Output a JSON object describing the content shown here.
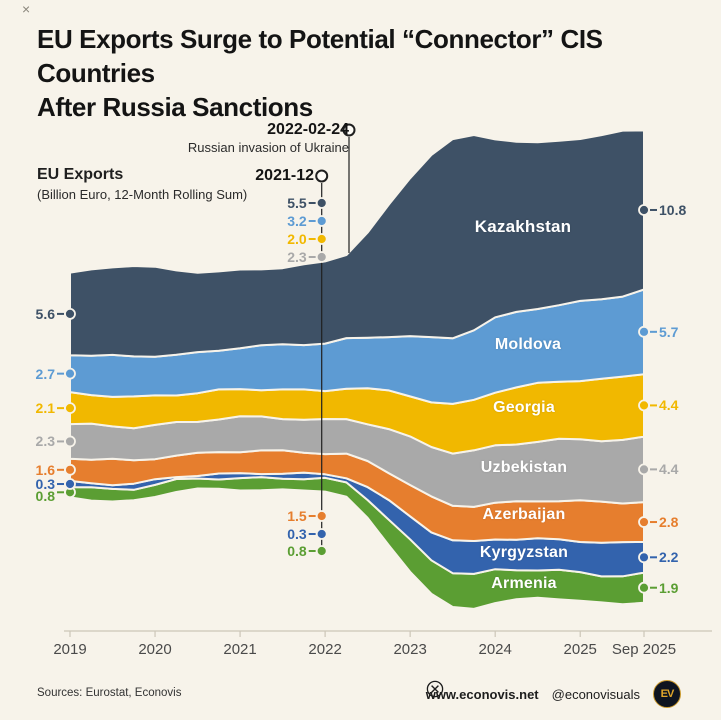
{
  "page": {
    "close_glyph": "×",
    "background": "#f7f3ea"
  },
  "header": {
    "title_line1": "EU Exports Surge to Potential “Connector” CIS Countries",
    "title_line2": "After Russia Sanctions"
  },
  "chart_data": {
    "type": "area",
    "variant": "stacked-streamgraph",
    "title": "EU Exports",
    "subtitle": "(Billion Euro, 12-Month Rolling Sum)",
    "unit": "Billion Euro, 12-month rolling sum",
    "x": [
      2019.0,
      2019.25,
      2019.5,
      2019.75,
      2020.0,
      2020.25,
      2020.5,
      2020.75,
      2021.0,
      2021.25,
      2021.5,
      2021.75,
      2022.0,
      2022.25,
      2022.5,
      2022.75,
      2023.0,
      2023.25,
      2023.5,
      2023.75,
      2024.0,
      2024.25,
      2024.5,
      2024.75,
      2025.0,
      2025.25,
      2025.5,
      2025.75
    ],
    "x_axis": {
      "ticks": [
        "2019",
        "2020",
        "2021",
        "2022",
        "2023",
        "2024",
        "2025",
        "Sep 2025"
      ],
      "tick_years": [
        2019,
        2020,
        2021,
        2022,
        2023,
        2024,
        2025,
        2025.75
      ]
    },
    "series": [
      {
        "name": "Armenia",
        "color": "#5b9e33",
        "start_label": "0.8",
        "mid_label": "0.8",
        "end_label": "1.9",
        "values": [
          0.8,
          0.8,
          0.82,
          0.8,
          0.78,
          0.75,
          0.76,
          0.8,
          0.8,
          0.8,
          0.8,
          0.8,
          0.8,
          0.95,
          1.4,
          1.8,
          2.1,
          2.3,
          2.4,
          2.3,
          2.2,
          2.1,
          2.0,
          1.95,
          1.9,
          1.88,
          1.9,
          1.9
        ]
      },
      {
        "name": "Kyrgyzstan",
        "color": "#3363ad",
        "start_label": "0.3",
        "mid_label": "0.3",
        "end_label": "2.2",
        "values": [
          0.3,
          0.3,
          0.32,
          0.3,
          0.3,
          0.28,
          0.28,
          0.3,
          0.3,
          0.3,
          0.3,
          0.3,
          0.3,
          0.45,
          0.85,
          1.25,
          1.65,
          1.95,
          2.1,
          2.2,
          2.2,
          2.15,
          2.1,
          2.1,
          2.15,
          2.2,
          2.2,
          2.2
        ]
      },
      {
        "name": "Azerbaijan",
        "color": "#e67e2e",
        "start_label": "1.6",
        "mid_label": "1.5",
        "end_label": "2.8",
        "values": [
          1.6,
          1.62,
          1.65,
          1.6,
          1.55,
          1.5,
          1.48,
          1.5,
          1.5,
          1.5,
          1.5,
          1.5,
          1.5,
          1.6,
          1.75,
          1.95,
          2.1,
          2.3,
          2.4,
          2.5,
          2.5,
          2.55,
          2.6,
          2.65,
          2.7,
          2.75,
          2.8,
          2.8
        ]
      },
      {
        "name": "Uzbekistan",
        "color": "#a9a9a9",
        "start_label": "2.3",
        "mid_label": "2.3",
        "end_label": "4.4",
        "values": [
          2.3,
          2.32,
          2.3,
          2.35,
          2.3,
          2.22,
          2.2,
          2.25,
          2.3,
          2.3,
          2.3,
          2.3,
          2.3,
          2.4,
          2.6,
          2.9,
          3.2,
          3.5,
          3.7,
          3.8,
          3.9,
          4.0,
          4.05,
          4.1,
          4.2,
          4.3,
          4.35,
          4.4
        ]
      },
      {
        "name": "Georgia",
        "color": "#f1b800",
        "start_label": "2.1",
        "mid_label": "2.0",
        "end_label": "4.4",
        "values": [
          2.1,
          2.1,
          2.12,
          2.08,
          2.0,
          1.92,
          1.9,
          1.9,
          1.92,
          1.95,
          2.0,
          2.0,
          2.0,
          2.1,
          2.3,
          2.6,
          2.9,
          3.1,
          3.3,
          3.5,
          3.7,
          3.8,
          3.9,
          4.0,
          4.1,
          4.2,
          4.3,
          4.4
        ]
      },
      {
        "name": "Moldova",
        "color": "#5d9bd3",
        "start_label": "2.7",
        "mid_label": "3.2",
        "end_label": "5.7",
        "values": [
          2.7,
          2.72,
          2.78,
          2.8,
          2.72,
          2.65,
          2.7,
          2.78,
          2.9,
          3.0,
          3.08,
          3.15,
          3.2,
          3.3,
          3.5,
          3.8,
          4.1,
          4.4,
          4.6,
          4.8,
          5.0,
          5.1,
          5.2,
          5.3,
          5.4,
          5.5,
          5.6,
          5.7
        ]
      },
      {
        "name": "Kazakhstan",
        "color": "#3e5166",
        "start_label": "5.6",
        "mid_label": "5.5",
        "end_label": "10.8",
        "values": [
          5.6,
          5.85,
          6.1,
          6.2,
          6.0,
          5.75,
          5.6,
          5.45,
          5.3,
          5.25,
          5.3,
          5.4,
          5.5,
          5.8,
          7.3,
          9.0,
          10.8,
          12.6,
          13.6,
          13.2,
          12.2,
          11.8,
          11.4,
          11.2,
          11.2,
          11.3,
          11.2,
          10.8
        ]
      }
    ],
    "annotations": {
      "event": {
        "date_label": "2022-02-24",
        "text": "Russian invasion of Ukraine"
      },
      "snapshot": {
        "date_label": "2021-12"
      }
    }
  },
  "footer": {
    "sources": "Sources: Eurostat, Econovis",
    "website": "www.econovis.net",
    "social_handle": "@econovisuals",
    "logo_text": "EV"
  }
}
